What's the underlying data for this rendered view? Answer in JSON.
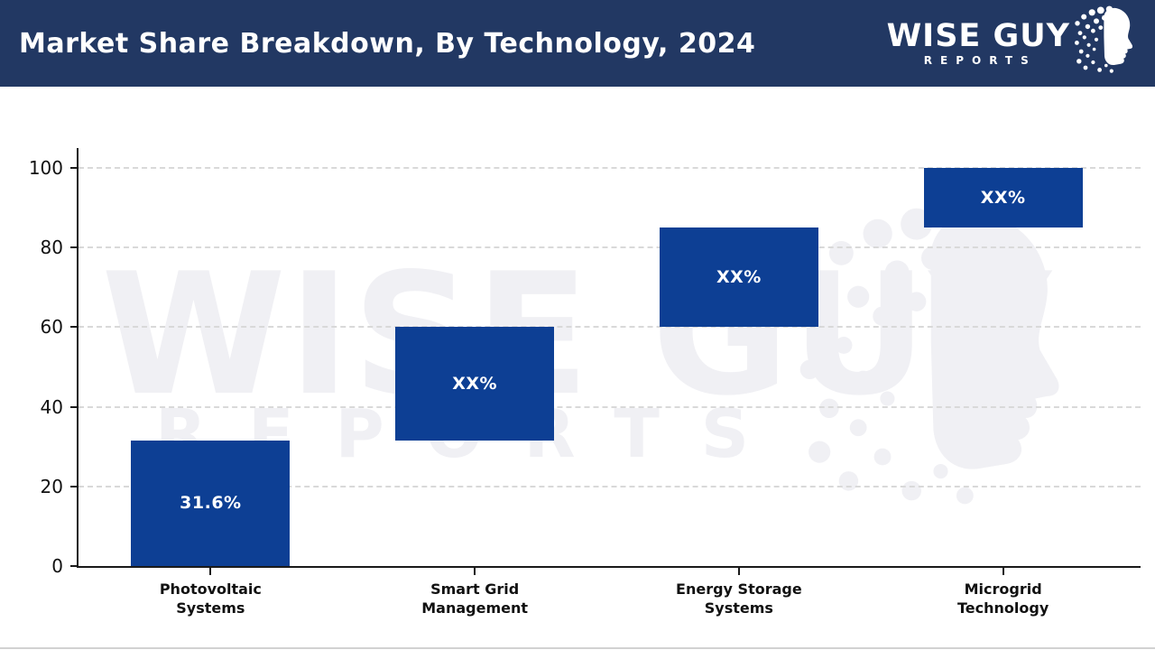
{
  "header": {
    "title": "Market Share Breakdown, By Technology, 2024",
    "logo": {
      "line1": "WISE GUY",
      "line2": "REPORTS"
    }
  },
  "watermark": {
    "line1": "WISE GUY",
    "line2": "REPORTS"
  },
  "colors": {
    "header_background": "#223863",
    "bar_blue": "#0d3f94",
    "grid_gray": "#d9d9d9",
    "watermark_gray": "#f0f0f4"
  },
  "chart_data": {
    "type": "bar",
    "subtype": "waterfall-stacked-market-share",
    "title": "Market Share Breakdown, By Technology, 2024",
    "categories": [
      "Photovoltaic\nSystems",
      "Smart Grid\nManagement",
      "Energy Storage\nSystems",
      "Microgrid\nTechnology"
    ],
    "segments": [
      {
        "category": "Photovoltaic Systems",
        "start": 0,
        "end": 31.6,
        "label": "31.6%"
      },
      {
        "category": "Smart Grid Management",
        "start": 31.6,
        "end": 60,
        "label": "XX%"
      },
      {
        "category": "Energy Storage Systems",
        "start": 60,
        "end": 85,
        "label": "XX%"
      },
      {
        "category": "Microgrid Technology",
        "start": 85,
        "end": 100,
        "label": "XX%"
      }
    ],
    "xlabel": "",
    "ylabel": "",
    "yticks": [
      0,
      20,
      40,
      60,
      80,
      100
    ],
    "ylim": [
      0,
      105
    ],
    "grid": "horizontal-dashed",
    "legend": "none",
    "bar_color": "#0d3f94",
    "bar_label_color": "#ffffff"
  }
}
